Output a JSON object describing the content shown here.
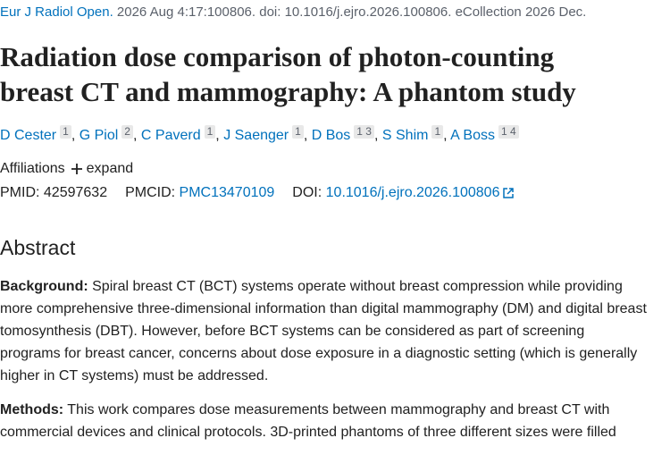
{
  "citation": {
    "journal": "Eur J Radiol Open.",
    "details": "2026 Aug 4:17:100806. doi: 10.1016/j.ejro.2026.100806. eCollection 2026 Dec."
  },
  "title": "Radiation dose comparison of photon-counting breast CT and mammography: A phantom study",
  "authors": {
    "separator": ",",
    "list": [
      {
        "name": "D Cester",
        "affiliations": "1"
      },
      {
        "name": "G Piol",
        "affiliations": "2"
      },
      {
        "name": "C Paverd",
        "affiliations": "1"
      },
      {
        "name": "J Saenger",
        "affiliations": "1"
      },
      {
        "name": "D Bos",
        "affiliations": "1 3"
      },
      {
        "name": "S Shim",
        "affiliations": "1"
      },
      {
        "name": "A Boss",
        "affiliations": "1 4"
      }
    ]
  },
  "affiliations": {
    "label": "Affiliations",
    "toggle": "expand"
  },
  "identifiers": {
    "pmid_label": "PMID:",
    "pmid": "42597632",
    "pmcid_label": "PMCID:",
    "pmcid": "PMC13470109",
    "doi_label": "DOI:",
    "doi": "10.1016/j.ejro.2026.100806"
  },
  "abstract": {
    "heading": "Abstract",
    "sections": [
      {
        "label": "Background:",
        "text": "Spiral breast CT (BCT) systems operate without breast compression while providing more comprehensive three-dimensional information than digital mammography (DM) and digital breast tomosynthesis (DBT). However, before BCT systems can be considered as part of screening programs for breast cancer, concerns about dose exposure in a diagnostic setting (which is generally higher in CT systems) must be addressed."
      },
      {
        "label": "Methods:",
        "text": "This work compares dose measurements between mammography and breast CT with commercial devices and clinical protocols. 3D-printed phantoms of three different sizes were filled"
      }
    ]
  }
}
